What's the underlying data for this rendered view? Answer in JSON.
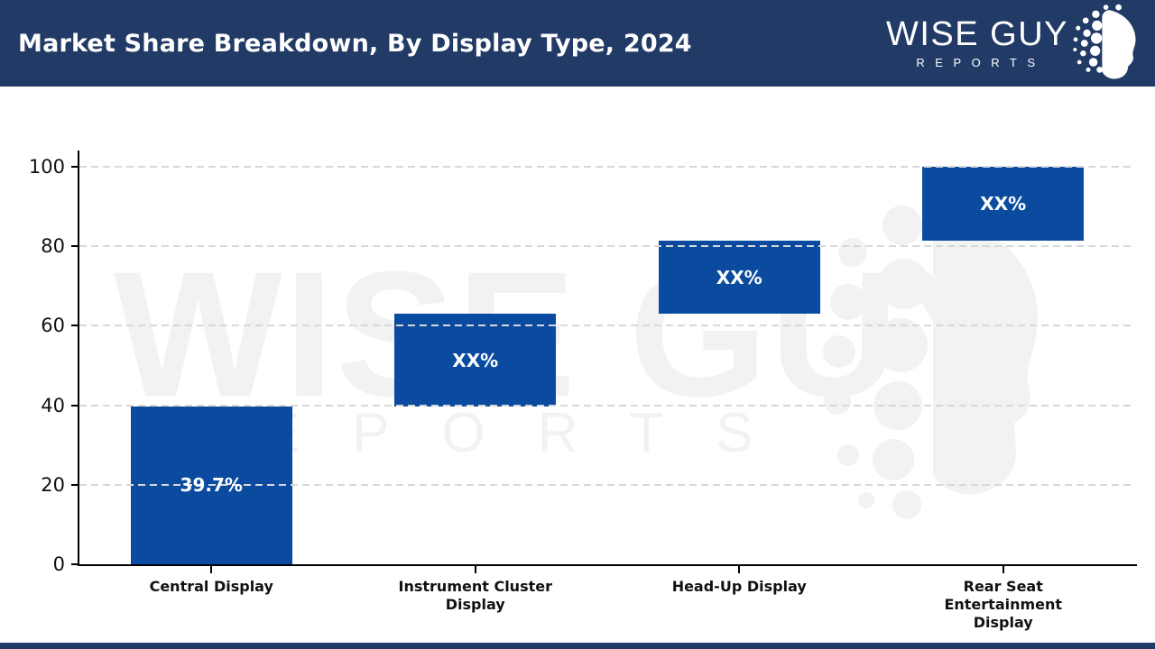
{
  "header": {
    "title": "Market Share Breakdown, By Display Type, 2024"
  },
  "logo": {
    "name": "WISE GUY",
    "sub": "REPORTS"
  },
  "watermark": {
    "name": "WISE GUY",
    "sub": "REPORTS"
  },
  "chart_data": {
    "type": "bar",
    "subtype": "waterfall",
    "title": "Market Share Breakdown, By Display Type, 2024",
    "categories": [
      "Central Display",
      "Instrument Cluster Display",
      "Head-Up Display",
      "Rear Seat Entertainment Display"
    ],
    "category_lines": [
      [
        "Central Display"
      ],
      [
        "Instrument Cluster",
        "Display"
      ],
      [
        "Head-Up Display"
      ],
      [
        "Rear Seat",
        "Entertainment",
        "Display"
      ]
    ],
    "segments": [
      {
        "category": "Central Display",
        "start": 0,
        "end": 39.7,
        "label": "39.7%"
      },
      {
        "category": "Instrument Cluster Display",
        "start": 39.7,
        "end": 63.0,
        "label": "XX%"
      },
      {
        "category": "Head-Up Display",
        "start": 63.0,
        "end": 81.4,
        "label": "XX%"
      },
      {
        "category": "Rear Seat Entertainment Display",
        "start": 81.4,
        "end": 100,
        "label": "XX%"
      }
    ],
    "yticks": [
      0,
      20,
      40,
      60,
      80,
      100
    ],
    "ylim": [
      0,
      104
    ],
    "xlabel": "",
    "ylabel": "",
    "grid": "horizontal-dashed",
    "legend": "none",
    "bar_color": "#0A4BA0",
    "bar_label_color": "#FFFFFF"
  },
  "colors": {
    "header_bg": "#213A66",
    "footer_bg": "#213A66",
    "bar": "#0A4BA0",
    "grid": "#D8D8D8",
    "axis": "#000000",
    "watermark": "#F2F2F5"
  }
}
